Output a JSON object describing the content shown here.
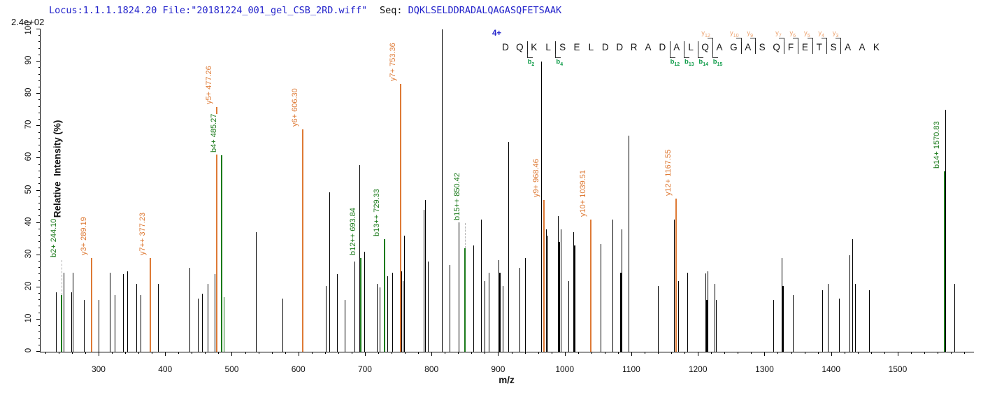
{
  "header": {
    "locus_file": "Locus:1.1.1.1824.20 File:\"20181224_001_gel_CSB_2RD.wiff\"",
    "seq_label": "Seq: ",
    "seq_value": "DQKLSELDDRADALQAGASQFETSAAK",
    "max_intensity_label": "2.4e+02"
  },
  "colors": {
    "header_blue": "#2323cb",
    "ion_y_orange": "#de7a35",
    "ion_b_green": "#1a7a1a",
    "ruler_y_orange": "#eda26d",
    "ruler_b_green": "#0f9c49",
    "axis_black": "#000000",
    "leader_gray": "#b3b3b3"
  },
  "chart_data": {
    "type": "bar",
    "subtype": "ms2-peptide-fragmentation-spectrum",
    "title": "",
    "xlabel": "m/z",
    "ylabel": "Relative  Intensity (%)",
    "xlim": [
      212.9,
      1614.5
    ],
    "ylim": [
      0,
      100
    ],
    "x_major_ticks": [
      300,
      400,
      500,
      600,
      700,
      800,
      900,
      1000,
      1100,
      1200,
      1300,
      1400,
      1500
    ],
    "x_minor_tick_step": 20,
    "y_major_ticks": [
      0,
      10,
      20,
      30,
      40,
      50,
      60,
      70,
      80,
      90,
      100
    ],
    "y_minor_tick_step": 2,
    "grid": false,
    "precursor_charge": "4+",
    "peptide": "DQKLSELDDRADALQAGASQFETSAAK",
    "fragment_markers": {
      "b": [
        2,
        4,
        12,
        13,
        14,
        15
      ],
      "y": [
        12,
        10,
        9,
        7,
        6,
        5,
        4,
        3
      ]
    },
    "labeled_peaks": [
      {
        "label": "b2+ 244.10",
        "mz": 244.1,
        "intensity": 17.5,
        "ion": "b",
        "leader_pct": 11
      },
      {
        "label": "y3+ 289.19",
        "mz": 289.19,
        "intensity": 29,
        "ion": "y",
        "leader_pct": 0
      },
      {
        "label": "y7++ 377.23",
        "mz": 377.23,
        "intensity": 29,
        "ion": "y",
        "leader_pct": 0
      },
      {
        "label": "y5+ 477.26",
        "mz": 477.26,
        "intensity": 76,
        "ion": "y",
        "leader_pct": 0
      },
      {
        "label": "b4+ 485.27",
        "mz": 485.27,
        "intensity": 61,
        "ion": "b",
        "leader_pct": 0
      },
      {
        "label": "y6+ 606.30",
        "mz": 606.3,
        "intensity": 69,
        "ion": "y",
        "leader_pct": 0
      },
      {
        "label": "b12++ 693.84",
        "mz": 693.84,
        "intensity": 29,
        "ion": "b",
        "leader_pct": 0
      },
      {
        "label": "b13++ 729.33",
        "mz": 729.33,
        "intensity": 35,
        "ion": "b",
        "leader_pct": 0
      },
      {
        "label": "y7+ 753.36",
        "mz": 753.36,
        "intensity": 83,
        "ion": "y",
        "leader_pct": 0
      },
      {
        "label": "b15++ 850.42",
        "mz": 850.42,
        "intensity": 32,
        "ion": "b",
        "leader_pct": 8
      },
      {
        "label": "y9+ 968.46",
        "mz": 968.46,
        "intensity": 47,
        "ion": "y",
        "leader_pct": 0
      },
      {
        "label": "y10+ 1039.51",
        "mz": 1039.51,
        "intensity": 41,
        "ion": "y",
        "leader_pct": 0
      },
      {
        "label": "y12+ 1167.55",
        "mz": 1167.55,
        "intensity": 47.5,
        "ion": "y",
        "leader_pct": 0
      },
      {
        "label": "b14+ 1570.83",
        "mz": 1570.83,
        "intensity": 56,
        "ion": "b",
        "leader_pct": 0
      }
    ],
    "peaks": [
      [
        237,
        18.5
      ],
      [
        248,
        24.5
      ],
      [
        260,
        18.5
      ],
      [
        262,
        24.5
      ],
      [
        279,
        16
      ],
      [
        301,
        16
      ],
      [
        317,
        24.5
      ],
      [
        325,
        17.5
      ],
      [
        337,
        24
      ],
      [
        344,
        25
      ],
      [
        357,
        21
      ],
      [
        364,
        17.5
      ],
      [
        390,
        21
      ],
      [
        437,
        26
      ],
      [
        450,
        16.5
      ],
      [
        456,
        18
      ],
      [
        464,
        21
      ],
      [
        475,
        24
      ],
      [
        488,
        17,
        1,
        "#1a7a1a"
      ],
      [
        537,
        37
      ],
      [
        577,
        16.5
      ],
      [
        607,
        46
      ],
      [
        642,
        20.5
      ],
      [
        647,
        49.5
      ],
      [
        659,
        24
      ],
      [
        670,
        16
      ],
      [
        685,
        28
      ],
      [
        692,
        58
      ],
      [
        700,
        31
      ],
      [
        718,
        21
      ],
      [
        723,
        20
      ],
      [
        734,
        23.5
      ],
      [
        742,
        24.5
      ],
      [
        755,
        25
      ],
      [
        757,
        22
      ],
      [
        759,
        36
      ],
      [
        789,
        44
      ],
      [
        791,
        47
      ],
      [
        795,
        28
      ],
      [
        816,
        100
      ],
      [
        828,
        27
      ],
      [
        841,
        44
      ],
      [
        863,
        33
      ],
      [
        875,
        41
      ],
      [
        880,
        22
      ],
      [
        886,
        24.5
      ],
      [
        901,
        28.5
      ],
      [
        903,
        24.5,
        2
      ],
      [
        907,
        20.5
      ],
      [
        916,
        65
      ],
      [
        933,
        26
      ],
      [
        941,
        29
      ],
      [
        965,
        90
      ],
      [
        973,
        38
      ],
      [
        975,
        36
      ],
      [
        990,
        42
      ],
      [
        992,
        34,
        2
      ],
      [
        995,
        38
      ],
      [
        1006,
        22
      ],
      [
        1013,
        37
      ],
      [
        1015,
        33,
        2
      ],
      [
        1054,
        33.5
      ],
      [
        1072,
        41
      ],
      [
        1084,
        24.5,
        2
      ],
      [
        1086,
        38
      ],
      [
        1096,
        67
      ],
      [
        1140,
        20.5
      ],
      [
        1165,
        41
      ],
      [
        1171,
        22
      ],
      [
        1185,
        24.5
      ],
      [
        1212,
        24.3
      ],
      [
        1213,
        16,
        3
      ],
      [
        1215,
        25
      ],
      [
        1226,
        21
      ],
      [
        1228,
        16
      ],
      [
        1314,
        16
      ],
      [
        1326,
        29
      ],
      [
        1328,
        20.5,
        2
      ],
      [
        1343,
        17.5
      ],
      [
        1387,
        19
      ],
      [
        1396,
        21
      ],
      [
        1412,
        16.5
      ],
      [
        1428,
        30
      ],
      [
        1432,
        35
      ],
      [
        1437,
        21
      ],
      [
        1458,
        19
      ],
      [
        1572,
        75
      ],
      [
        1586,
        21
      ]
    ]
  }
}
